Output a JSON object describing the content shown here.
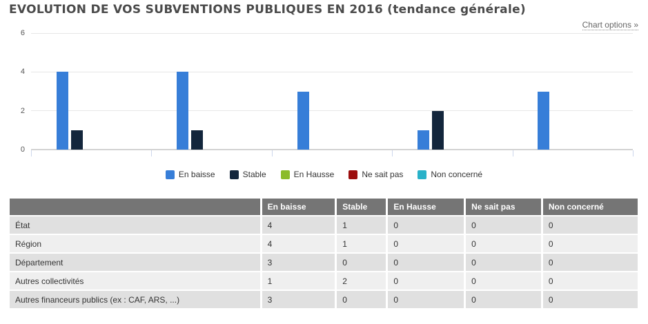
{
  "header": {
    "title": "EVOLUTION DE VOS SUBVENTIONS PUBLIQUES EN 2016 (tendance générale)",
    "chart_options_label": "Chart options »"
  },
  "chart_data": {
    "type": "bar",
    "title": "EVOLUTION DE VOS SUBVENTIONS PUBLIQUES EN 2016 (tendance générale)",
    "categories": [
      "État",
      "Région",
      "Département",
      "Autres collectivités",
      "Autres financeurs publics (ex : CAF, ARS, ...)"
    ],
    "series": [
      {
        "name": "En baisse",
        "color": "#377ed8",
        "values": [
          4,
          4,
          3,
          1,
          3
        ]
      },
      {
        "name": "Stable",
        "color": "#13263c",
        "values": [
          1,
          1,
          0,
          2,
          0
        ]
      },
      {
        "name": "En Hausse",
        "color": "#8bbb2b",
        "values": [
          0,
          0,
          0,
          0,
          0
        ]
      },
      {
        "name": "Ne sait pas",
        "color": "#9c0e0e",
        "values": [
          0,
          0,
          0,
          0,
          0
        ]
      },
      {
        "name": "Non concerné",
        "color": "#29b2c9",
        "values": [
          0,
          0,
          0,
          0,
          0
        ]
      }
    ],
    "xlabel": "",
    "ylabel": "",
    "ylim": [
      0,
      6
    ],
    "yticks": [
      0,
      2,
      4,
      6
    ],
    "x_tick_labels_visible": false,
    "grid": true,
    "legend_position": "bottom"
  },
  "table": {
    "headers": [
      "",
      "En baisse",
      "Stable",
      "En Hausse",
      "Ne sait pas",
      "Non concerné"
    ],
    "rows": [
      {
        "label": "État",
        "values": [
          "4",
          "1",
          "0",
          "0",
          "0"
        ]
      },
      {
        "label": "Région",
        "values": [
          "4",
          "1",
          "0",
          "0",
          "0"
        ]
      },
      {
        "label": "Département",
        "values": [
          "3",
          "0",
          "0",
          "0",
          "0"
        ]
      },
      {
        "label": "Autres collectivités",
        "values": [
          "1",
          "2",
          "0",
          "0",
          "0"
        ]
      },
      {
        "label": "Autres financeurs publics (ex : CAF, ARS, ...)",
        "values": [
          "3",
          "0",
          "0",
          "0",
          "0"
        ]
      }
    ]
  },
  "colors": {
    "title_text": "#4a4a4a",
    "axis_label": "#555555",
    "gridline": "#e6e6e6",
    "axis_line": "#d2d2d2",
    "tick": "#ccd6eb",
    "table_header_bg": "#757575",
    "table_row_odd_bg": "#e0e0e0",
    "table_row_even_bg": "#efefef"
  }
}
